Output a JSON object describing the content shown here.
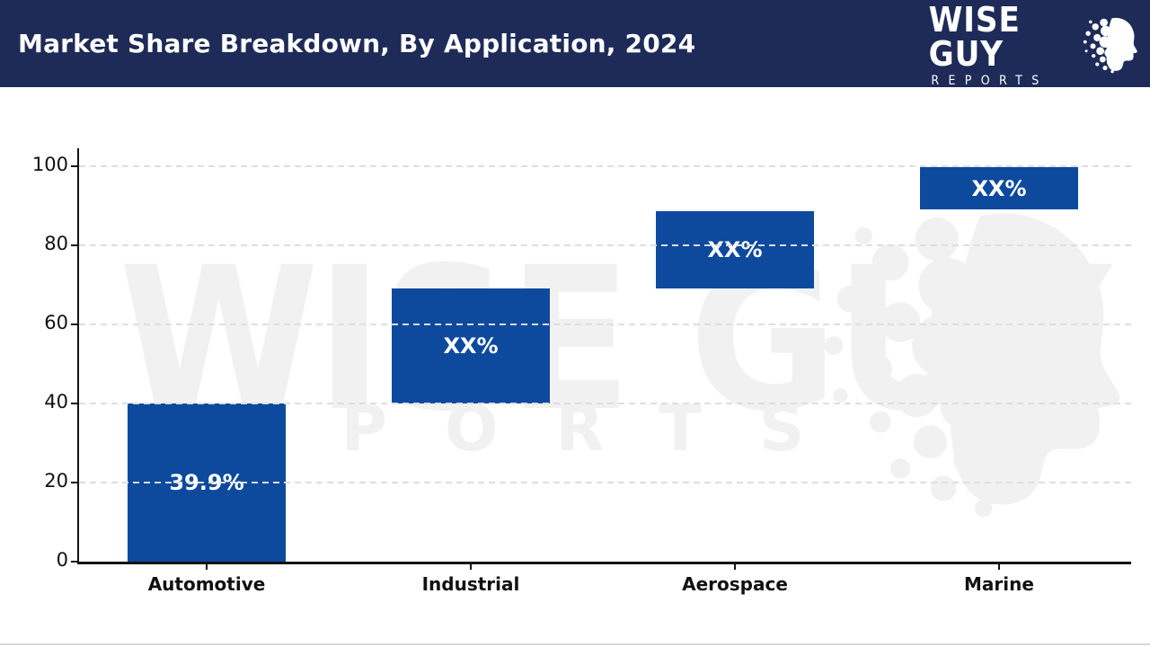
{
  "header": {
    "title": "Market Share Breakdown, By Application, 2024",
    "logo": {
      "line1": "WISE GUY",
      "line2": "REPORTS"
    }
  },
  "watermark": {
    "line1": "WISE GUY",
    "line2": "REPORTS"
  },
  "chart_data": {
    "type": "bar",
    "subtype": "floating-waterfall",
    "title": "Market Share Breakdown, By Application, 2024",
    "categories": [
      "Automotive",
      "Industrial",
      "Aerospace",
      "Marine"
    ],
    "bars": [
      {
        "category": "Automotive",
        "start": 0,
        "end": 39.9,
        "label": "39.9%"
      },
      {
        "category": "Industrial",
        "start": 39.9,
        "end": 69.0,
        "label": "XX%"
      },
      {
        "category": "Aerospace",
        "start": 69.0,
        "end": 88.7,
        "label": "XX%"
      },
      {
        "category": "Marine",
        "start": 89.0,
        "end": 99.7,
        "label": "XX%"
      }
    ],
    "ylim": [
      0,
      100
    ],
    "yticks": [
      0,
      20,
      40,
      60,
      80,
      100
    ],
    "xlabel": "",
    "ylabel": "",
    "grid": "horizontal-dashed",
    "legend": null,
    "bar_color": "#0d4a9e",
    "bar_label_color": "#ffffff"
  },
  "colors": {
    "header_bg": "#1e2b58",
    "bar": "#0d4a9e",
    "gridline": "#dedede",
    "axis": "#121212",
    "watermark": "#f1f1f1",
    "bottom_line": "#d9d9d9"
  }
}
